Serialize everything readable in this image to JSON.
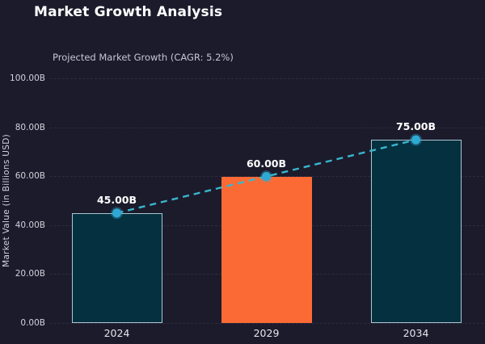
{
  "page": {
    "title": "Market Growth Analysis",
    "subtitle": "Projected Market Growth (CAGR: 5.2%)"
  },
  "chart_data": {
    "type": "bar",
    "title": "Market Growth Analysis",
    "subtitle": "Projected Market Growth (CAGR: 5.2%)",
    "categories": [
      "2024",
      "2029",
      "2034"
    ],
    "values": [
      45,
      60,
      75
    ],
    "value_labels": [
      "45.00B",
      "60.00B",
      "75.00B"
    ],
    "xlabel": "",
    "ylabel": "Market Value (in Billions USD)",
    "ylim": [
      0,
      100
    ],
    "yticks": [
      0,
      20,
      40,
      60,
      80,
      100
    ],
    "ytick_labels": [
      "0.00B",
      "20.00B",
      "40.00B",
      "60.00B",
      "80.00B",
      "100.00B"
    ],
    "grid": true,
    "legend": "none",
    "overlay_trendline": {
      "style": "dashed",
      "values": [
        45,
        60,
        75
      ],
      "line_color": "#3ab5cd",
      "marker_color": "#2fa9d3",
      "marker_glow_color": "rgba(47,169,211,0.35)"
    },
    "colors": {
      "background": "#1b1b2c",
      "bar_fill": [
        "#05303f",
        "#fb6a35",
        "#05303f"
      ],
      "bar_border": [
        "#a9c7d2",
        "#fb6a35",
        "#a9c7d2"
      ],
      "title_text": "#ffffff",
      "subtitle_text": "#c6c6d2",
      "axis_text": "#d2d2dc",
      "x_tick_text": "#e6e6ec",
      "value_label_text": "#ffffff",
      "gridline": "rgba(255,255,255,0.08)"
    }
  }
}
